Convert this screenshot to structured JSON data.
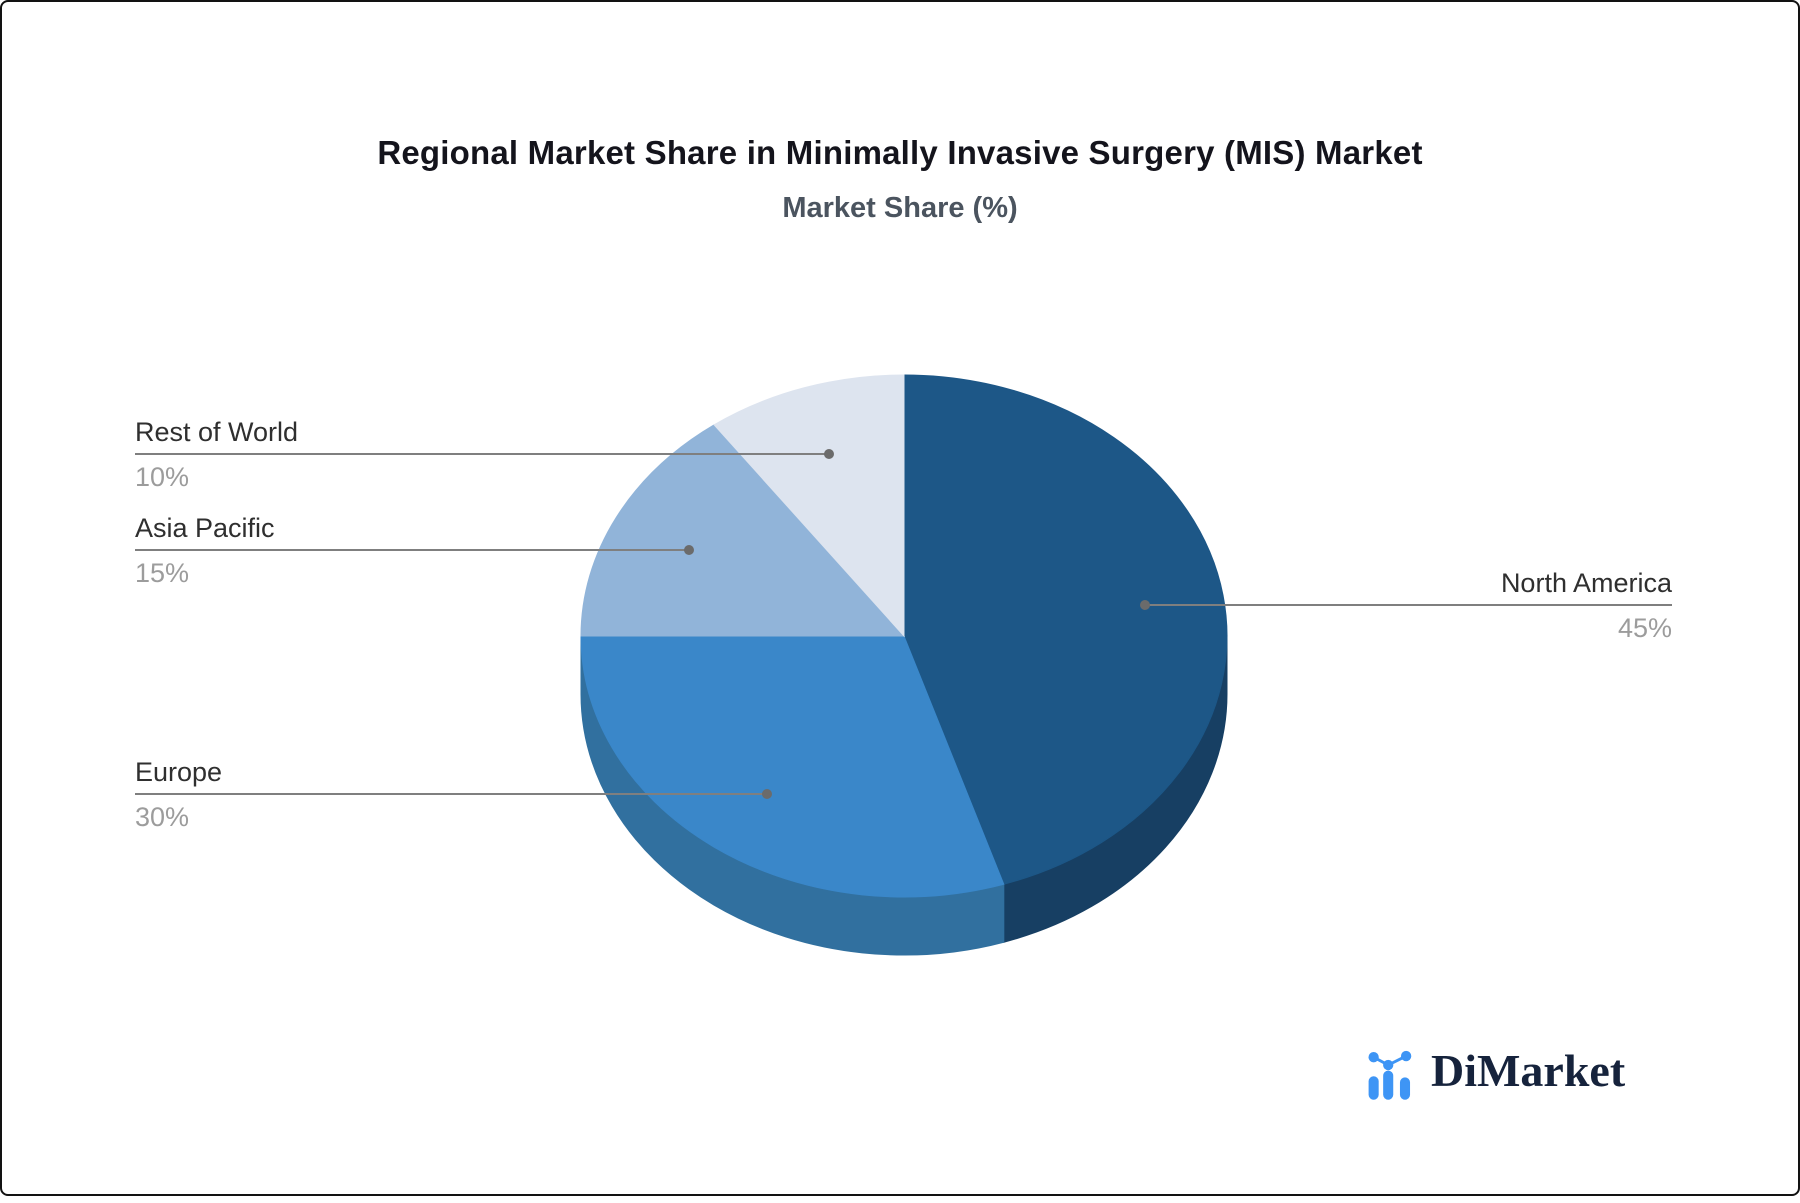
{
  "header": {
    "title": "Regional Market Share in Minimally Invasive Surgery (MIS) Market",
    "subtitle": "Market Share (%)"
  },
  "chart_data": {
    "type": "pie",
    "title": "Regional Market Share in Minimally Invasive Surgery (MIS) Market",
    "subtitle": "Market Share (%)",
    "unit": "%",
    "start_angle_deg": 0,
    "direction": "clockwise",
    "effect_3d": true,
    "legend_position": "leader-line annotations",
    "slices": [
      {
        "label": "North America",
        "value": 45,
        "display": "45%",
        "color": "#1D5787",
        "side_color": "#173F63"
      },
      {
        "label": "Europe",
        "value": 30,
        "display": "30%",
        "color": "#3A87C9",
        "side_color": "#31709F"
      },
      {
        "label": "Asia Pacific",
        "value": 15,
        "display": "15%",
        "color": "#91B4D9",
        "side_color": "#6E93BC"
      },
      {
        "label": "Rest of World",
        "value": 10,
        "display": "10%",
        "color": "#DDE4EF",
        "side_color": "#B9C6DA"
      }
    ]
  },
  "annotations": [
    {
      "label": "Rest of World",
      "pct": "10%"
    },
    {
      "label": "Asia Pacific",
      "pct": "15%"
    },
    {
      "label": "Europe",
      "pct": "30%"
    },
    {
      "label": "North America",
      "pct": "45%"
    }
  ],
  "logo": {
    "text": "DiMarket",
    "accent_color": "#3E95F5",
    "text_color": "#16233C"
  },
  "colors": {
    "background": "#FFFFFF",
    "title": "#14141C",
    "subtitle": "#4B545F",
    "annotation_label": "#2F2F2F",
    "annotation_pct": "#9C9C9C",
    "leader_line": "#7F7F7F",
    "leader_dot": "#6B6B6B"
  }
}
